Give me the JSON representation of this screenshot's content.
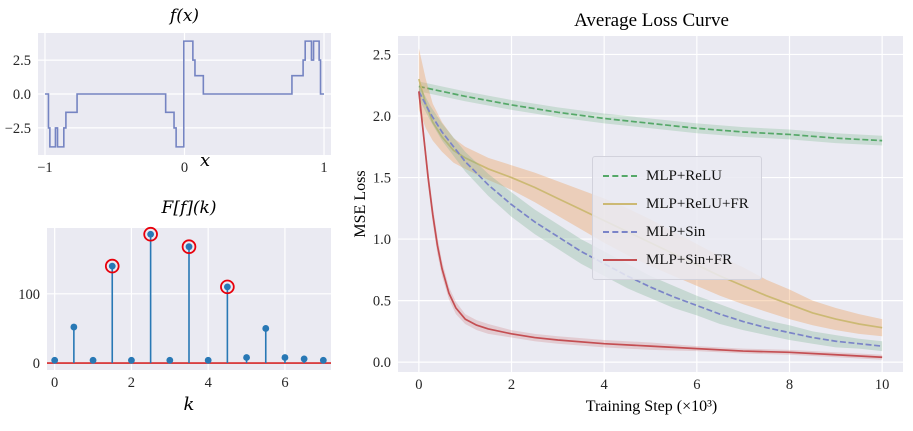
{
  "colors": {
    "axes_background": "#eaeaf2",
    "grid": "#ffffff",
    "tick_text": "#262626"
  },
  "chart_data": [
    {
      "type": "line",
      "title": "f(x)",
      "xlabel": "x",
      "xlim": [
        -1.05,
        1.05
      ],
      "ylim": [
        -4.5,
        4.5
      ],
      "xticks": [
        -1,
        0,
        1
      ],
      "xtick_labels": [
        "−1",
        "0",
        "1"
      ],
      "yticks": [
        -2.5,
        0,
        2.5
      ],
      "ytick_labels": [
        "−2.5",
        "0.0",
        "2.5"
      ],
      "line_color": "#7584c2",
      "points": [
        [
          -1,
          0
        ],
        [
          -0.975,
          0
        ],
        [
          -0.975,
          -2.5
        ],
        [
          -0.965,
          -2.5
        ],
        [
          -0.965,
          -3.9
        ],
        [
          -0.925,
          -3.9
        ],
        [
          -0.925,
          -2.5
        ],
        [
          -0.91,
          -2.5
        ],
        [
          -0.91,
          -3.9
        ],
        [
          -0.865,
          -3.9
        ],
        [
          -0.865,
          -2.5
        ],
        [
          -0.85,
          -2.5
        ],
        [
          -0.85,
          -1.35
        ],
        [
          -0.77,
          -1.35
        ],
        [
          -0.77,
          0
        ],
        [
          -0.135,
          0
        ],
        [
          -0.135,
          -1.35
        ],
        [
          -0.075,
          -1.35
        ],
        [
          -0.075,
          -2.5
        ],
        [
          -0.06,
          -2.5
        ],
        [
          -0.06,
          -3.9
        ],
        [
          -0.005,
          -3.9
        ],
        [
          -0.005,
          3.9
        ],
        [
          0.06,
          3.9
        ],
        [
          0.06,
          2.5
        ],
        [
          0.075,
          2.5
        ],
        [
          0.075,
          1.35
        ],
        [
          0.135,
          1.35
        ],
        [
          0.135,
          0
        ],
        [
          0.77,
          0
        ],
        [
          0.77,
          1.35
        ],
        [
          0.85,
          1.35
        ],
        [
          0.85,
          2.5
        ],
        [
          0.865,
          2.5
        ],
        [
          0.865,
          3.9
        ],
        [
          0.91,
          3.9
        ],
        [
          0.91,
          2.5
        ],
        [
          0.925,
          2.5
        ],
        [
          0.925,
          3.9
        ],
        [
          0.965,
          3.9
        ],
        [
          0.965,
          2.5
        ],
        [
          0.975,
          2.5
        ],
        [
          0.975,
          0
        ],
        [
          1,
          0
        ]
      ]
    },
    {
      "type": "stem",
      "title": "F[f](k)",
      "xlabel": "k",
      "xlim": [
        -0.2,
        7.2
      ],
      "ylim": [
        -10,
        195
      ],
      "xticks": [
        0,
        2,
        4,
        6
      ],
      "xtick_labels": [
        "0",
        "2",
        "4",
        "6"
      ],
      "yticks": [
        0,
        100
      ],
      "ytick_labels": [
        "0",
        "100"
      ],
      "stem_color": "#2878b5",
      "baseline_color": "#d62728",
      "highlight_color": "#e8000b",
      "k": [
        0,
        0.5,
        1,
        1.5,
        2,
        2.5,
        3,
        3.5,
        4,
        4.5,
        5,
        5.5,
        6,
        6.5,
        7
      ],
      "values": [
        4,
        52,
        4,
        140,
        4,
        186,
        4,
        168,
        4,
        110,
        8,
        50,
        8,
        6,
        4
      ],
      "highlighted": [
        1.5,
        2.5,
        3.5,
        4.5
      ]
    },
    {
      "type": "line",
      "title": "Average Loss Curve",
      "xlabel": "Training Step (×10³)",
      "ylabel": "MSE Loss",
      "xlim": [
        -0.45,
        10.45
      ],
      "ylim": [
        -0.08,
        2.65
      ],
      "xticks": [
        0,
        2,
        4,
        6,
        8,
        10
      ],
      "xtick_labels": [
        "0",
        "2",
        "4",
        "6",
        "8",
        "10"
      ],
      "yticks": [
        0,
        0.5,
        1,
        1.5,
        2,
        2.5
      ],
      "ytick_labels": [
        "0.0",
        "0.5",
        "1.0",
        "1.5",
        "2.0",
        "2.5"
      ],
      "legend_position": "center right",
      "series": [
        {
          "name": "MLP+ReLU",
          "color": "#55a868",
          "dash": true,
          "band_color": "rgba(85,168,104,0.22)",
          "x": [
            0,
            1,
            2,
            3,
            4,
            5,
            6,
            7,
            8,
            9,
            10
          ],
          "y": [
            2.24,
            2.16,
            2.09,
            2.03,
            1.98,
            1.94,
            1.9,
            1.87,
            1.85,
            1.82,
            1.8
          ],
          "band": 0.04
        },
        {
          "name": "MLP+ReLU+FR",
          "color": "#ccb974",
          "dash": false,
          "band_color": "rgba(237,150,72,0.33)",
          "x": [
            0,
            0.15,
            0.3,
            0.5,
            0.75,
            1,
            1.5,
            2,
            2.5,
            3,
            3.5,
            4,
            4.5,
            5,
            5.5,
            6,
            6.5,
            7,
            7.5,
            8,
            8.5,
            9,
            9.5,
            10
          ],
          "y": [
            2.3,
            2.1,
            1.95,
            1.83,
            1.72,
            1.66,
            1.57,
            1.5,
            1.42,
            1.33,
            1.24,
            1.15,
            1.06,
            0.97,
            0.88,
            0.79,
            0.7,
            0.62,
            0.54,
            0.47,
            0.4,
            0.35,
            0.31,
            0.28
          ],
          "band": [
            0.25,
            0.2,
            0.15,
            0.12,
            0.1,
            0.09,
            0.09,
            0.1,
            0.12,
            0.14,
            0.16,
            0.18,
            0.19,
            0.19,
            0.18,
            0.17,
            0.16,
            0.15,
            0.13,
            0.12,
            0.1,
            0.09,
            0.08,
            0.07
          ]
        },
        {
          "name": "MLP+Sin",
          "color": "#7b84c8",
          "dash": true,
          "band_color": "rgba(120,175,140,0.30)",
          "x": [
            0,
            0.25,
            0.5,
            1,
            1.5,
            2,
            2.5,
            3,
            3.5,
            4,
            4.5,
            5,
            5.5,
            6,
            6.5,
            7,
            7.5,
            8,
            8.5,
            9,
            9.5,
            10
          ],
          "y": [
            2.2,
            2.02,
            1.87,
            1.63,
            1.44,
            1.28,
            1.14,
            1.02,
            0.9,
            0.8,
            0.7,
            0.61,
            0.53,
            0.46,
            0.39,
            0.33,
            0.28,
            0.24,
            0.2,
            0.17,
            0.15,
            0.13
          ],
          "band": [
            0.06,
            0.06,
            0.07,
            0.08,
            0.09,
            0.1,
            0.1,
            0.1,
            0.1,
            0.1,
            0.1,
            0.09,
            0.09,
            0.08,
            0.08,
            0.07,
            0.06,
            0.06,
            0.05,
            0.05,
            0.04,
            0.04
          ]
        },
        {
          "name": "MLP+Sin+FR",
          "color": "#c44e52",
          "dash": false,
          "band_color": "rgba(196,78,82,0.20)",
          "x": [
            0,
            0.1,
            0.2,
            0.3,
            0.4,
            0.5,
            0.65,
            0.8,
            1,
            1.25,
            1.5,
            2,
            2.5,
            3,
            4,
            5,
            6,
            7,
            8,
            9,
            10
          ],
          "y": [
            2.2,
            1.85,
            1.5,
            1.2,
            0.95,
            0.76,
            0.56,
            0.44,
            0.35,
            0.3,
            0.27,
            0.23,
            0.2,
            0.18,
            0.15,
            0.13,
            0.11,
            0.09,
            0.08,
            0.06,
            0.04
          ],
          "band": [
            0.05,
            0.06,
            0.07,
            0.07,
            0.07,
            0.06,
            0.05,
            0.05,
            0.04,
            0.04,
            0.04,
            0.03,
            0.03,
            0.03,
            0.03,
            0.03,
            0.02,
            0.02,
            0.02,
            0.02,
            0.02
          ]
        }
      ]
    }
  ]
}
